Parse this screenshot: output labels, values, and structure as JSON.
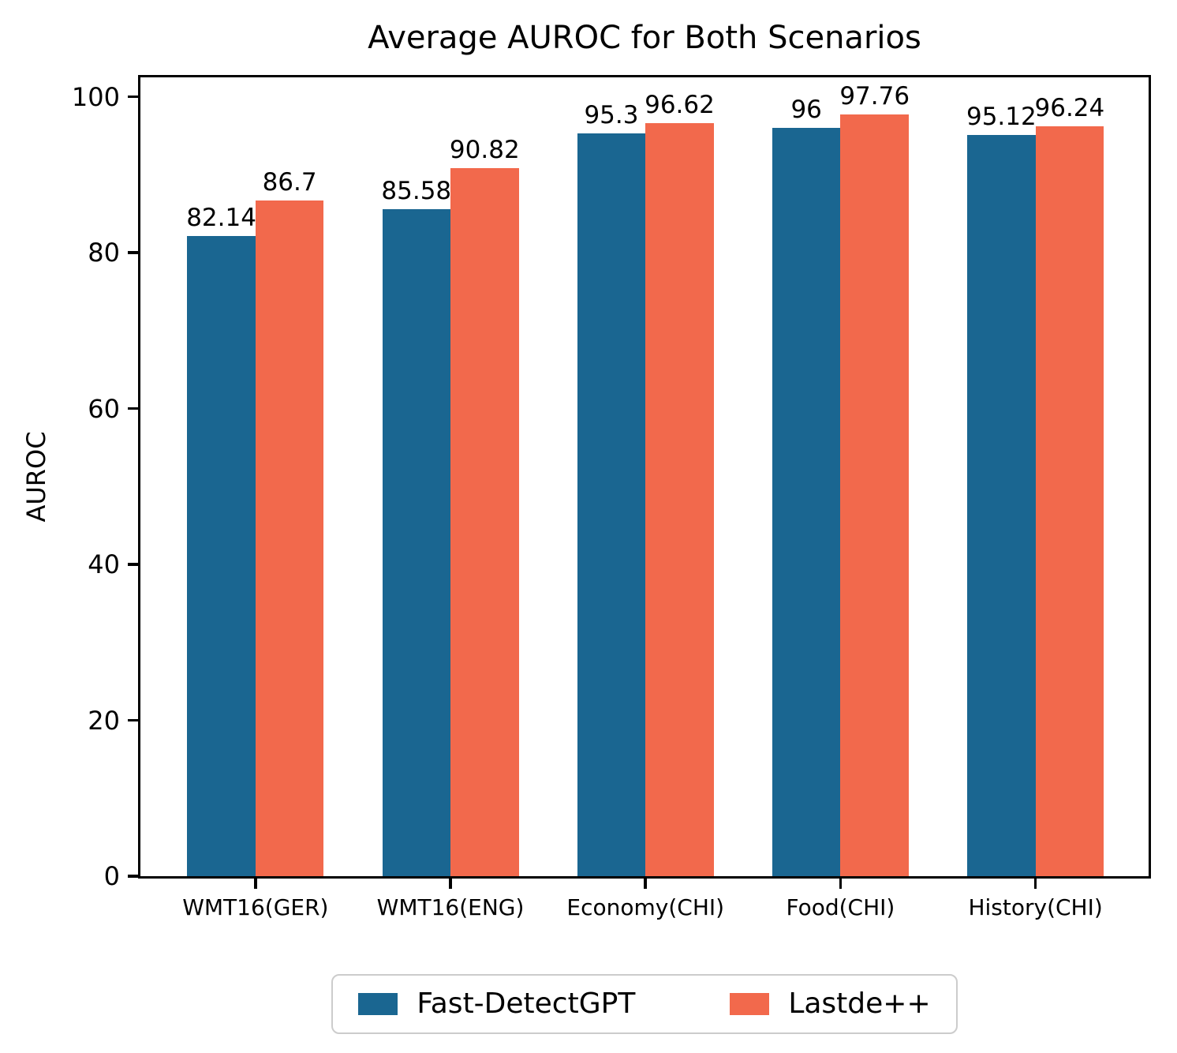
{
  "chart_data": {
    "type": "bar",
    "title": "Average AUROC for Both Scenarios",
    "xlabel": "",
    "ylabel": "AUROC",
    "categories": [
      "WMT16(GER)",
      "WMT16(ENG)",
      "Economy(CHI)",
      "Food(CHI)",
      "History(CHI)"
    ],
    "series": [
      {
        "name": "Fast-DetectGPT",
        "color": "#1A6691",
        "values": [
          82.14,
          85.58,
          95.3,
          96,
          95.12
        ],
        "value_labels": [
          "82.14",
          "85.58",
          "95.3",
          "96",
          "95.12"
        ]
      },
      {
        "name": "Lastde++",
        "color": "#F2694C",
        "values": [
          86.7,
          90.82,
          96.62,
          97.76,
          96.24
        ],
        "value_labels": [
          "86.7",
          "90.82",
          "96.62",
          "97.76",
          "96.24"
        ]
      }
    ],
    "yticks": [
      0,
      20,
      40,
      60,
      80,
      100
    ],
    "ylim": [
      0,
      102.5
    ],
    "grid": false,
    "bar_value_labels": true,
    "legend_position": "bottom center"
  }
}
